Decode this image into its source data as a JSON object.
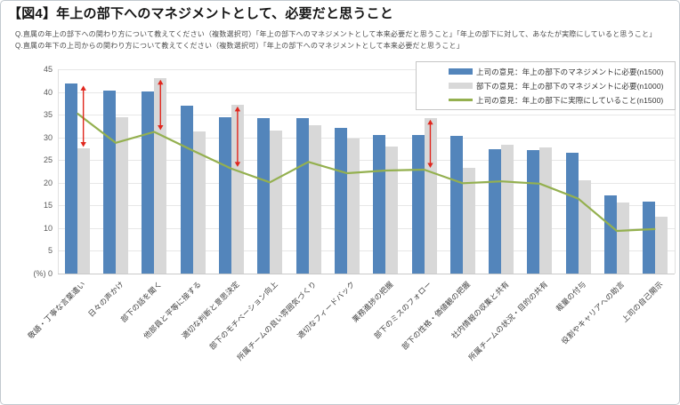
{
  "figure": {
    "title": "【図4】年上の部下へのマネジメントとして、必要だと思うこと",
    "questions": [
      "Q.直属の年上の部下への関わり方について教えてください（複数選択可）「年上の部下へのマネジメントとして本来必要だと思うこと」「年上の部下に対して、あなたが実際にしていると思うこと」",
      "Q.直属の年下の上司からの関わり方について教えてください（複数選択可）「年上の部下へのマネジメントとして本来必要だと思うこと」"
    ]
  },
  "legend": {
    "position": "top-right",
    "items": [
      {
        "label": "上司の意見：年上の部下のマネジメントに必要(n1500)",
        "swatch": "bar",
        "color": "#5385bb"
      },
      {
        "label": "部下の意見：年上の部下のマネジメントに必要(n1000)",
        "swatch": "bar",
        "color": "#d8d8d8"
      },
      {
        "label": "上司の意見：年上の部下に実際にしていること(n1500)",
        "swatch": "line",
        "color": "#94b04f"
      }
    ]
  },
  "colors": {
    "boss_necessary_bar": "#5385bb",
    "subordinate_necessary_bar": "#d8d8d8",
    "boss_actual_line": "#94b04f",
    "gap_arrow": "#e0261d",
    "gridline": "#e7e7e7",
    "axis_text": "#595959"
  },
  "chart_data": {
    "type": "bar",
    "subtype": "grouped bars with line overlay",
    "unit": "%",
    "unit_label": "(%)",
    "ylim": [
      0,
      45
    ],
    "grid": true,
    "legend_position": "top-right",
    "y_ticks": [
      {
        "v": 45,
        "label": "45"
      },
      {
        "v": 40,
        "label": "40"
      },
      {
        "v": 35,
        "label": "35"
      },
      {
        "v": 30,
        "label": "30"
      },
      {
        "v": 25,
        "label": "25"
      },
      {
        "v": 20,
        "label": "20"
      },
      {
        "v": 15,
        "label": "15"
      },
      {
        "v": 10,
        "label": "10"
      },
      {
        "v": 5,
        "label": "5"
      },
      {
        "v": 0,
        "label": "(%) 0"
      }
    ],
    "categories": [
      "敬語・丁寧な言葉遣い",
      "日々の声かけ",
      "部下の話を聞く",
      "他部員と平等に接する",
      "適切な判断と意思決定",
      "部下のモチベーション向上",
      "所属チームの良い雰囲気づくり",
      "適切なフィードバック",
      "業務進捗の把握",
      "部下のミスのフォロー",
      "部下の性格・価値観の把握",
      "社内情報の収集と共有",
      "所属チームの状況・目的の共有",
      "裁量の付与",
      "役割やキャリアへの助言",
      "上司の自己開示"
    ],
    "series": [
      {
        "name": "上司の意見：年上の部下のマネジメントに必要(n1500)",
        "type": "bar",
        "color": "#5385bb",
        "values": [
          41.8,
          40.4,
          40.2,
          37.0,
          34.4,
          34.3,
          34.2,
          32.0,
          30.6,
          30.6,
          30.4,
          27.4,
          27.2,
          26.6,
          17.2,
          15.9
        ]
      },
      {
        "name": "部下の意見：年上の部下のマネジメントに必要(n1000)",
        "type": "bar",
        "color": "#d8d8d8",
        "values": [
          27.5,
          34.4,
          43.1,
          31.4,
          37.2,
          31.6,
          32.6,
          29.7,
          28.0,
          34.3,
          23.3,
          28.4,
          27.7,
          20.6,
          15.7,
          12.6
        ]
      },
      {
        "name": "上司の意見：年上の部下に実際にしていること(n1500)",
        "type": "line",
        "color": "#94b04f",
        "values": [
          35.3,
          28.8,
          31.2,
          27.1,
          23.1,
          20.1,
          24.6,
          22.1,
          22.7,
          22.9,
          19.9,
          20.3,
          19.8,
          16.5,
          9.4,
          9.8
        ]
      }
    ],
    "annotations": {
      "arrow_color": "#e0261d",
      "arrows": [
        {
          "category_index": 0,
          "from": 41.8,
          "to": 27.5
        },
        {
          "category_index": 2,
          "from": 43.1,
          "to": 31.2
        },
        {
          "category_index": 4,
          "from": 37.2,
          "to": 23.1
        },
        {
          "category_index": 9,
          "from": 34.3,
          "to": 22.9
        }
      ]
    }
  }
}
